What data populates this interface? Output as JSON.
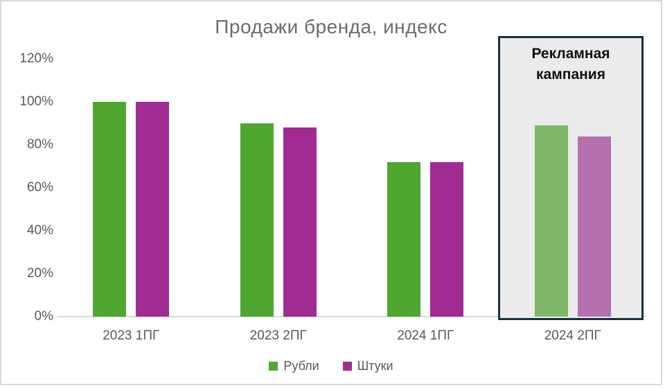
{
  "frame": {
    "background": "#ffffff",
    "border_color": "#d9d9d9"
  },
  "chart_data": {
    "type": "bar",
    "title": "Продажи бренда, индекс",
    "unit": "%",
    "categories": [
      "2023 1ПГ",
      "2023 2ПГ",
      "2024 1ПГ",
      "2024 2ПГ"
    ],
    "series": [
      {
        "name": "Рубли",
        "color": "#4EA72E",
        "highlight_color": "#7FB76A",
        "values": [
          100,
          90,
          72,
          89
        ]
      },
      {
        "name": "Штуки",
        "color": "#A02B93",
        "highlight_color": "#B571AE",
        "values": [
          100,
          88,
          72,
          84
        ]
      }
    ],
    "y_ticks": [
      {
        "value": 120,
        "label": "120%"
      },
      {
        "value": 100,
        "label": "100%"
      },
      {
        "value": 80,
        "label": "80%"
      },
      {
        "value": 60,
        "label": "60%"
      },
      {
        "value": 40,
        "label": "40%"
      },
      {
        "value": 20,
        "label": "20%"
      },
      {
        "value": 0,
        "label": "0%"
      }
    ],
    "ylim": [
      0,
      120
    ],
    "grid": false,
    "legend_position": "bottom",
    "highlighted_category_index": 3
  },
  "annotation": {
    "label": "Рекламная кампания",
    "box_fill": "#EBEBEB",
    "box_border": "#17303D"
  },
  "text_colors": {
    "title": "#6B6B6B",
    "axis": "#595959"
  }
}
